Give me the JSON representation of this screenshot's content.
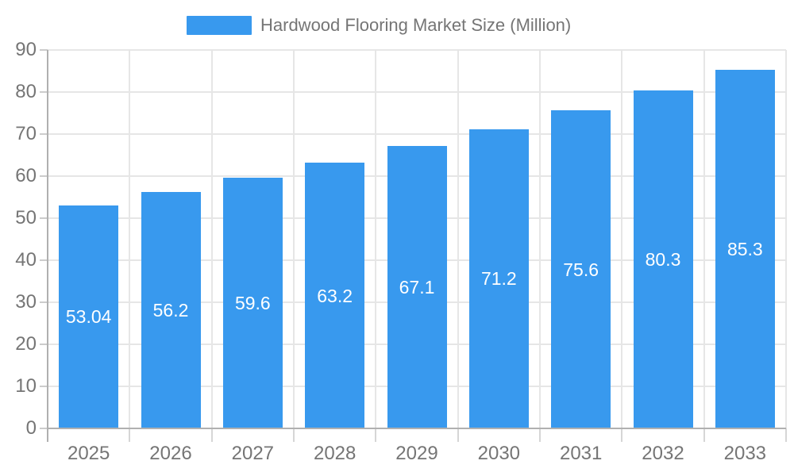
{
  "chart_data": {
    "type": "bar",
    "title": "Hardwood Flooring Market Size (Million)",
    "series_name": "Hardwood Flooring Market Size (Million)",
    "categories": [
      "2025",
      "2026",
      "2027",
      "2028",
      "2029",
      "2030",
      "2031",
      "2032",
      "2033"
    ],
    "values": [
      53.04,
      56.2,
      59.6,
      63.2,
      67.1,
      71.2,
      75.6,
      80.3,
      85.3
    ],
    "value_labels": [
      "53.04",
      "56.2",
      "59.6",
      "63.2",
      "67.1",
      "71.2",
      "75.6",
      "80.3",
      "85.3"
    ],
    "xlabel": "",
    "ylabel": "",
    "ylim": [
      0,
      90
    ],
    "ytick_step": 10,
    "ytick_labels": [
      "0",
      "10",
      "20",
      "30",
      "40",
      "50",
      "60",
      "70",
      "80",
      "90"
    ],
    "grid": true,
    "legend_position": "top",
    "colors": {
      "bar": "#3899ee",
      "bar_value_label": "#ffffff",
      "axis_text": "#757575",
      "legend_text": "#757575",
      "gridline": "#e6e6e6",
      "axis_line": "#b0b0b0",
      "background": "#ffffff"
    }
  }
}
